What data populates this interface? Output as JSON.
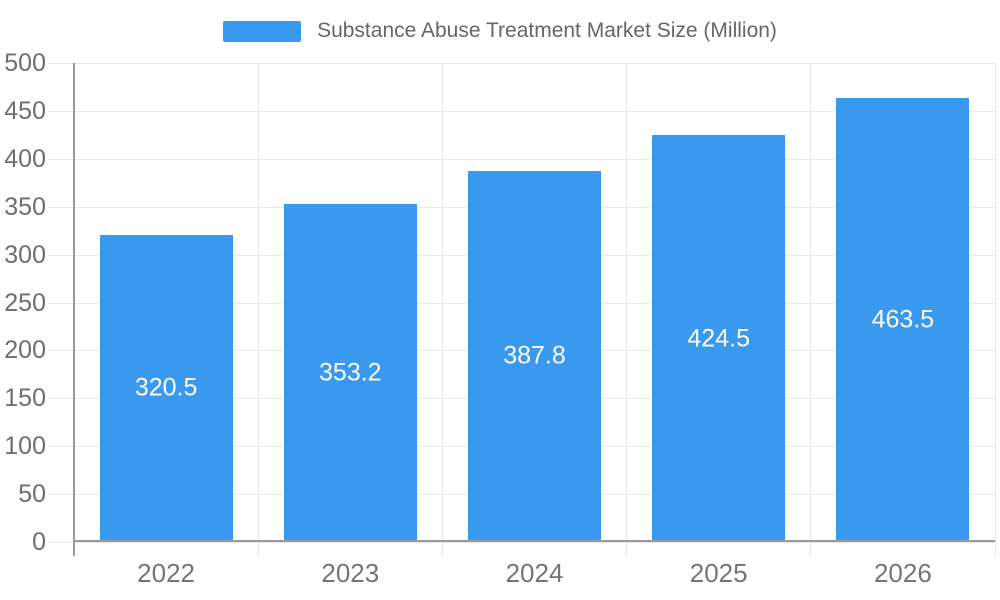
{
  "chart_data": {
    "type": "bar",
    "title": "Substance Abuse Treatment Market Size (Million)",
    "categories": [
      "2022",
      "2023",
      "2024",
      "2025",
      "2026"
    ],
    "series": [
      {
        "name": "Substance Abuse Treatment Market Size (Million)",
        "values": [
          320.5,
          353.2,
          387.8,
          424.5,
          463.5
        ],
        "color": "#3999EE"
      }
    ],
    "value_labels": [
      "320.5",
      "353.2",
      "387.8",
      "424.5",
      "463.5"
    ],
    "xlabel": "",
    "ylabel": "",
    "ylim": [
      0,
      500
    ],
    "yticks": [
      0,
      50,
      100,
      150,
      200,
      250,
      300,
      350,
      400,
      450,
      500
    ],
    "grid": true,
    "legend_position": "top",
    "colors": {
      "bar": "#3999EE",
      "grid_line": "#E8E8E8",
      "axis_line": "#9A9A9A",
      "y_tick_label": "#6E6E6E",
      "x_tick_label": "#757575",
      "value_label": "#FFFFFF",
      "legend_text": "#666666",
      "background": "#FFFFFF"
    }
  }
}
